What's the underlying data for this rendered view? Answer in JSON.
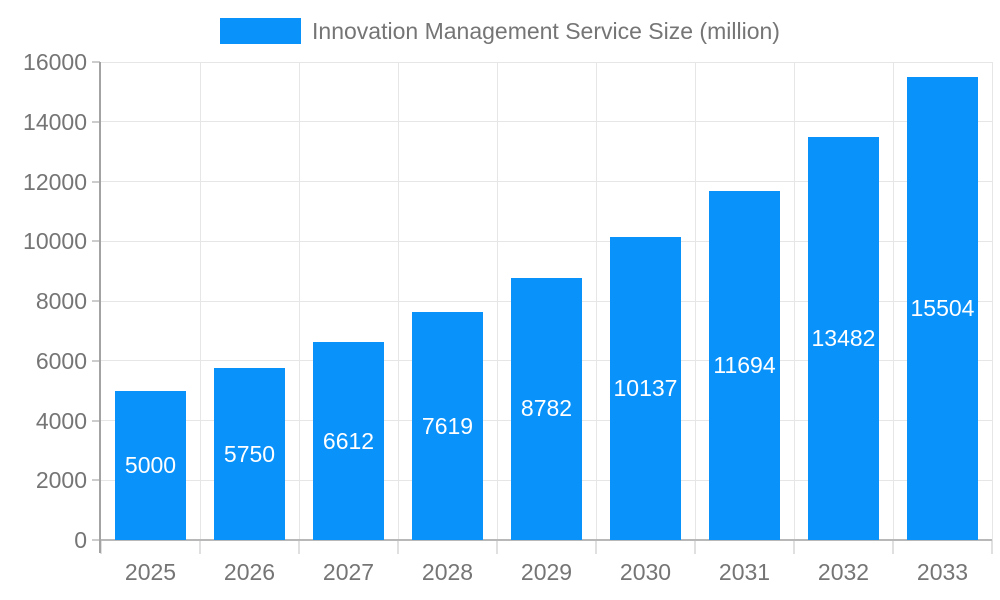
{
  "legend": {
    "label": "Innovation Management Service Size (million)"
  },
  "colors": {
    "bar": "#0992fa",
    "bar_label": "#ffffff",
    "axis_text": "#757575",
    "legend_text": "#757575",
    "grid_line": "#e6e6e6",
    "y_axis_line": "#a3a3a3",
    "x_axis_line": "#b8b8b8",
    "y_tick": "#cccccc",
    "x_tick": "#e0e0e0",
    "background": "#ffffff"
  },
  "chart_data": {
    "type": "bar",
    "title": "Innovation Management Service Size (million)",
    "categories": [
      "2025",
      "2026",
      "2027",
      "2028",
      "2029",
      "2030",
      "2031",
      "2032",
      "2033"
    ],
    "values": [
      5000,
      5750,
      6612,
      7619,
      8782,
      10137,
      11694,
      13482,
      15504
    ],
    "series_name": "Innovation Management Service Size (million)",
    "xlabel": "",
    "ylabel": "",
    "ylim": [
      0,
      16000
    ],
    "ytick_step": 2000,
    "ytick_labels": [
      "0",
      "2000",
      "4000",
      "6000",
      "8000",
      "10000",
      "12000",
      "14000",
      "16000"
    ],
    "grid": true,
    "vertical_grid": true,
    "legend_position": "top-center",
    "value_labels": "inside-center",
    "value_label_color": "#ffffff"
  }
}
